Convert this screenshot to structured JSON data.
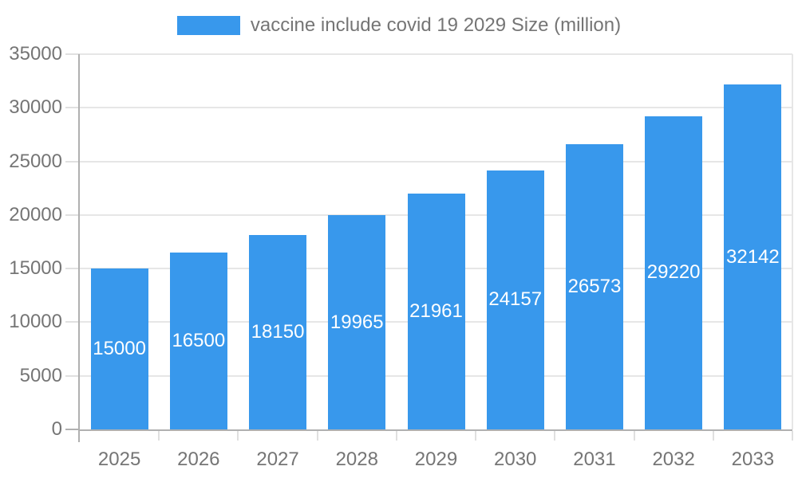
{
  "legend": {
    "label": "vaccine include covid 19 2029 Size (million)"
  },
  "chart_data": {
    "type": "bar",
    "title": "vaccine include covid 19 2029 Size (million)",
    "categories": [
      "2025",
      "2026",
      "2027",
      "2028",
      "2029",
      "2030",
      "2031",
      "2032",
      "2033"
    ],
    "values": [
      15000,
      16500,
      18150,
      19965,
      21961,
      24157,
      26573,
      29220,
      32142
    ],
    "xlabel": "",
    "ylabel": "",
    "ylim": [
      0,
      35000
    ],
    "ytick_step": 5000,
    "ytick_labels": [
      "0",
      "5000",
      "10000",
      "15000",
      "20000",
      "25000",
      "30000",
      "35000"
    ],
    "grid": "horizontal",
    "legend_position": "top",
    "bar_color": "#3898EC",
    "value_label_color": "#FFFFFF",
    "axis_label_color": "#757575",
    "grid_color": "#E6E6E6",
    "tick_color": "#E0E0E0",
    "axis_line_color": "#B0B0B0"
  }
}
